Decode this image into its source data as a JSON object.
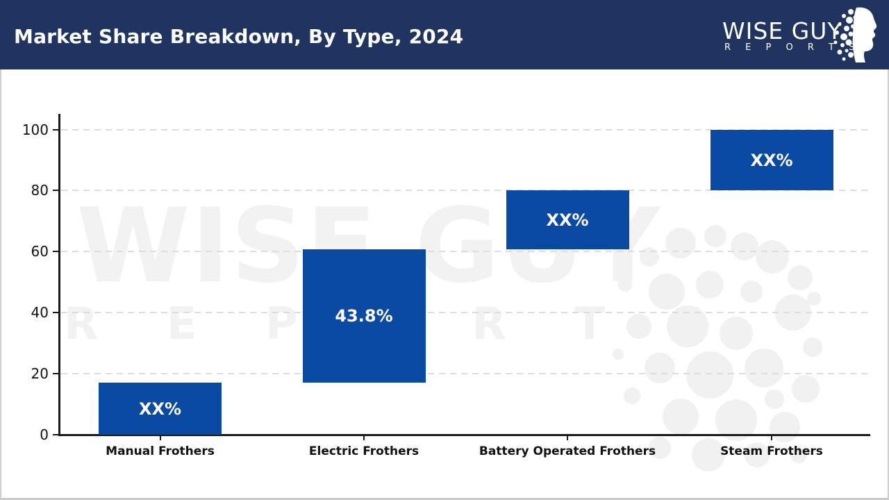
{
  "header": {
    "title": "Market Share Breakdown, By Type, 2024",
    "logo": {
      "wordmark": "WISE GUY",
      "subtext": "R E P O R T S"
    }
  },
  "watermark": {
    "line1": "WISE GUY",
    "line2": "R E P O R T S"
  },
  "chart_data": {
    "type": "bar",
    "subtype": "waterfall",
    "title": "Market Share Breakdown, By Type, 2024",
    "categories": [
      "Manual Frothers",
      "Electric Frothers",
      "Battery Operated Frothers",
      "Steam Frothers"
    ],
    "segments": [
      {
        "category": "Manual Frothers",
        "start": 0,
        "end": 17,
        "label": "XX%"
      },
      {
        "category": "Electric Frothers",
        "start": 17,
        "end": 60.8,
        "label": "43.8%"
      },
      {
        "category": "Battery Operated Frothers",
        "start": 60.8,
        "end": 80,
        "label": "XX%"
      },
      {
        "category": "Steam Frothers",
        "start": 80,
        "end": 100,
        "label": "XX%"
      }
    ],
    "xlabel": "",
    "ylabel": "",
    "yticks": [
      0,
      20,
      40,
      60,
      80,
      100
    ],
    "ylim": [
      0,
      105
    ],
    "grid": "horizontal-dashed",
    "legend": "none",
    "colors": {
      "bar": "#0B4AA2",
      "bar_label": "#FFFFFF",
      "grid": "#DCDCDC",
      "axis": "#1A1A1A",
      "tick_text": "#111111",
      "header_bg": "#21345F",
      "header_text": "#FFFFFF",
      "watermark": "#F2F2F2",
      "card_border": "#CCCCCC"
    }
  }
}
